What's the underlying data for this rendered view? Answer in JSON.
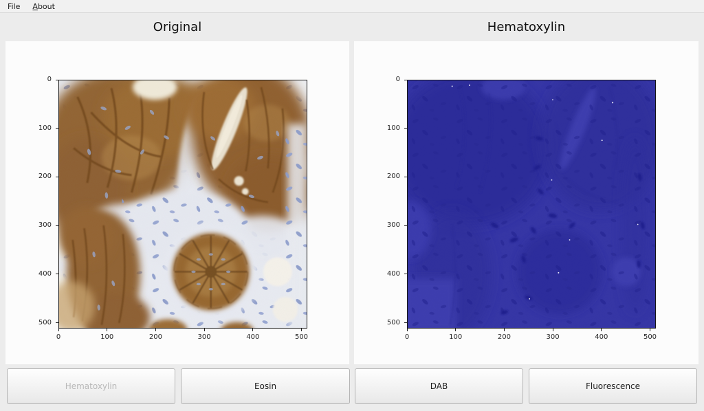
{
  "menubar": {
    "items": [
      {
        "label": "File"
      },
      {
        "accel": "A",
        "rest": "bout"
      }
    ]
  },
  "panels": [
    {
      "title": "Original"
    },
    {
      "title": "Hematoxylin"
    }
  ],
  "plot": {
    "tick_labels": [
      "0",
      "100",
      "200",
      "300",
      "400",
      "500"
    ],
    "tick_values": [
      0,
      100,
      200,
      300,
      400,
      500
    ],
    "axis_range": [
      0,
      512
    ]
  },
  "images": {
    "original": {
      "alt": "IHC-stained histology tissue: brown DAB glandular structures with pale stroma and blue nuclei"
    },
    "hematoxylin": {
      "alt": "Hematoxylin channel of the stain separation: uniform dark blue tissue with darker nuclei"
    }
  },
  "buttons": [
    {
      "label": "Hematoxylin",
      "enabled": false
    },
    {
      "label": "Eosin",
      "enabled": true
    },
    {
      "label": "DAB",
      "enabled": true
    },
    {
      "label": "Fluorescence",
      "enabled": true
    }
  ],
  "colors": {
    "dab_brown": "#916431",
    "hematoxylin_blue": "#3535a5",
    "stroma": "#e8ebf2",
    "disabled_text": "#b9b9b9",
    "panel_bg": "#fcfcfc",
    "window_bg": "#ececec"
  }
}
